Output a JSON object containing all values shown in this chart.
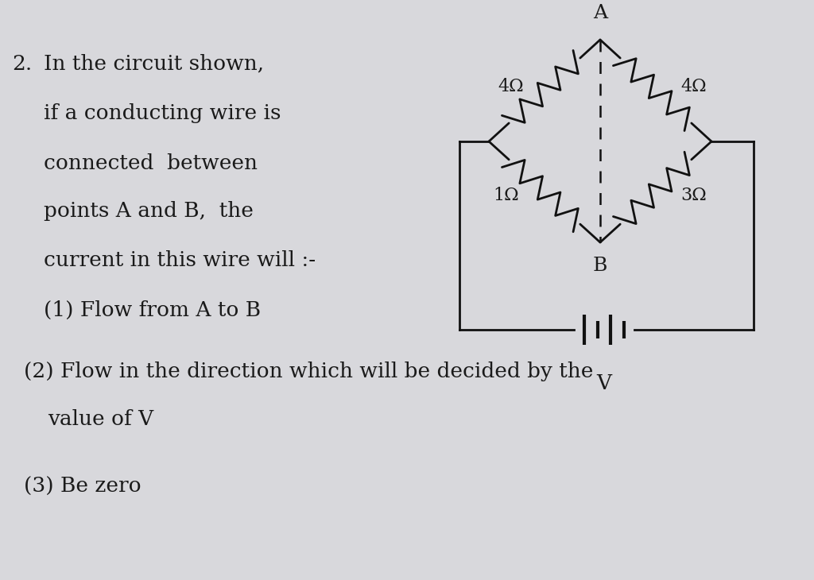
{
  "bg_color": "#d8d8dc",
  "text_color": "#1a1a1a",
  "q_num": "2.",
  "line1": "In the circuit shown,",
  "line2": "if a conducting wire is",
  "line3": "connected  between",
  "line4": "points A and B,  the",
  "line5": "current in this wire will :-",
  "option1": "(1) Flow from A to B",
  "option2": "(2) Flow in the direction which will be decided by the",
  "option2b": "      value of V",
  "option3": "(3) Be zero",
  "label_4ohm_left": "4Ω",
  "label_1ohm": "1Ω",
  "label_4ohm_right": "4Ω",
  "label_3ohm": "3Ω",
  "label_V": "V",
  "label_A": "A",
  "label_B": "B"
}
